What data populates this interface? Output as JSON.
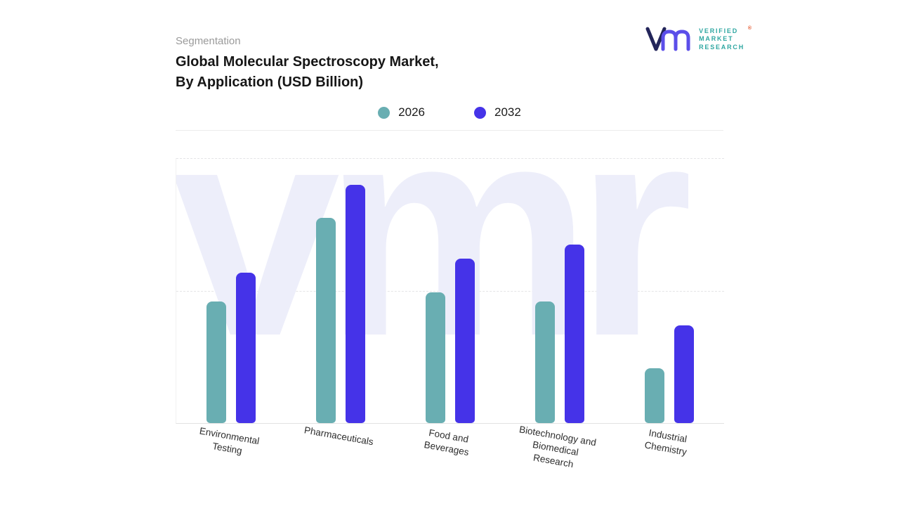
{
  "header": {
    "eyebrow": "Segmentation",
    "title_line1": "Global Molecular Spectroscopy Market,",
    "title_line2": "By Application (USD Billion)"
  },
  "logo": {
    "brand_lines": [
      "VERIFIED",
      "MARKET",
      "RESEARCH"
    ],
    "registered_mark": "®",
    "text_color": "#2FA7A2",
    "mark_navy": "#23255A",
    "mark_purple": "#5B4EE9"
  },
  "legend": [
    {
      "label": "2026",
      "color": "#69AEB2"
    },
    {
      "label": "2032",
      "color": "#4533E8"
    }
  ],
  "watermark_text": "vmr",
  "chart_data": {
    "type": "bar",
    "title": "Global Molecular Spectroscopy Market, By Application (USD Billion)",
    "categories": [
      "Environmental Testing",
      "Pharmaceuticals",
      "Food and Beverages",
      "Biotechnology and Biomedical Research",
      "Industrial Chemistry"
    ],
    "category_lines": [
      [
        "Environmental",
        "Testing"
      ],
      [
        "Pharmaceuticals"
      ],
      [
        "Food and",
        "Beverages"
      ],
      [
        "Biotechnology and",
        "Biomedical",
        "Research"
      ],
      [
        "Industrial",
        "Chemistry"
      ]
    ],
    "series": [
      {
        "name": "2026",
        "color": "#69AEB2",
        "values": [
          5.1,
          8.6,
          5.5,
          5.1,
          2.3
        ]
      },
      {
        "name": "2032",
        "color": "#4533E8",
        "values": [
          6.3,
          10.0,
          6.9,
          7.5,
          4.1
        ]
      }
    ],
    "xlabel": "",
    "ylabel": "",
    "ylim": [
      0,
      10
    ],
    "y_axis_labels_visible": false,
    "grid": "horizontal-dashed",
    "legend_position": "top-center"
  }
}
